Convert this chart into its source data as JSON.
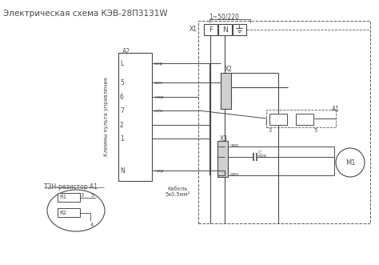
{
  "title": "Электрическая схема КЭВ-28П3131W",
  "title_fontsize": 7.5,
  "background_color": "#ffffff",
  "line_color": "#4a4a4a",
  "dashed_color": "#5a5a5a",
  "figsize": [
    4.74,
    3.31
  ],
  "dpi": 100,
  "power_label": "1~50/220",
  "x1_label": "X1",
  "x2_label": "X2",
  "x3_label": "X3",
  "a1_label": "A1",
  "a2_label": "A2",
  "m1_label": "M1",
  "f_label": "F",
  "n_label": "N",
  "terminal_label": "Клеммы пульта управления",
  "resistor_label": "ТЗН-резистор A1",
  "cable_label": "Кабель\n5х0.5мм²",
  "terminals": [
    "L",
    "5",
    "6",
    "7",
    "2",
    "1",
    "N"
  ],
  "terminal_colors": [
    "сер",
    "син",
    "кор",
    "ж/з",
    "",
    "",
    "чер"
  ],
  "x3_connections": [
    "чер",
    "кор",
    "син"
  ]
}
